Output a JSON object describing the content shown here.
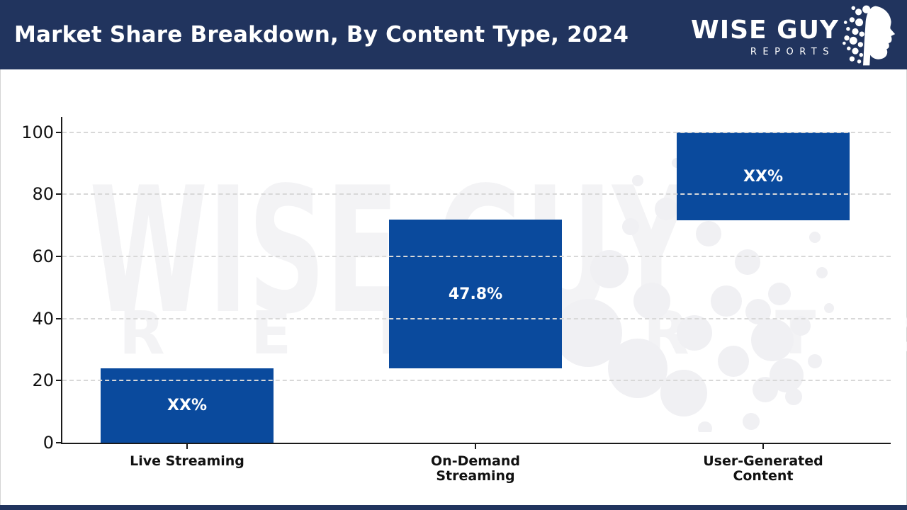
{
  "header": {
    "title": "Market Share Breakdown, By Content Type, 2024",
    "logo": {
      "line1": "WISE GUY",
      "line2": "REPORTS"
    }
  },
  "watermark": {
    "line1": "WISE GUY",
    "line2": "R E P O R T S"
  },
  "colors": {
    "header_bg": "#21345e",
    "bar": "#0a4a9d",
    "gridline": "#d8d8d8",
    "watermark": "#f3f3f5",
    "axis": "#1a1a1a"
  },
  "chart_data": {
    "type": "bar",
    "subtype": "waterfall",
    "title": "Market Share Breakdown, By Content Type, 2024",
    "categories": [
      "Live Streaming",
      "On-Demand Streaming",
      "User-Generated Content"
    ],
    "bar_labels": [
      "XX%",
      "47.8%",
      "XX%"
    ],
    "values": [
      24,
      47.8,
      28.2
    ],
    "segments": [
      {
        "start": 0,
        "end": 24
      },
      {
        "start": 24,
        "end": 71.8
      },
      {
        "start": 71.8,
        "end": 100
      }
    ],
    "ylim": [
      0,
      100
    ],
    "yticks": [
      0,
      20,
      40,
      60,
      80,
      100
    ],
    "xlabel": "",
    "ylabel": "",
    "grid": "horizontal-dashed-over-bars",
    "legend": "none",
    "bar_color": "#0a4a9d"
  }
}
